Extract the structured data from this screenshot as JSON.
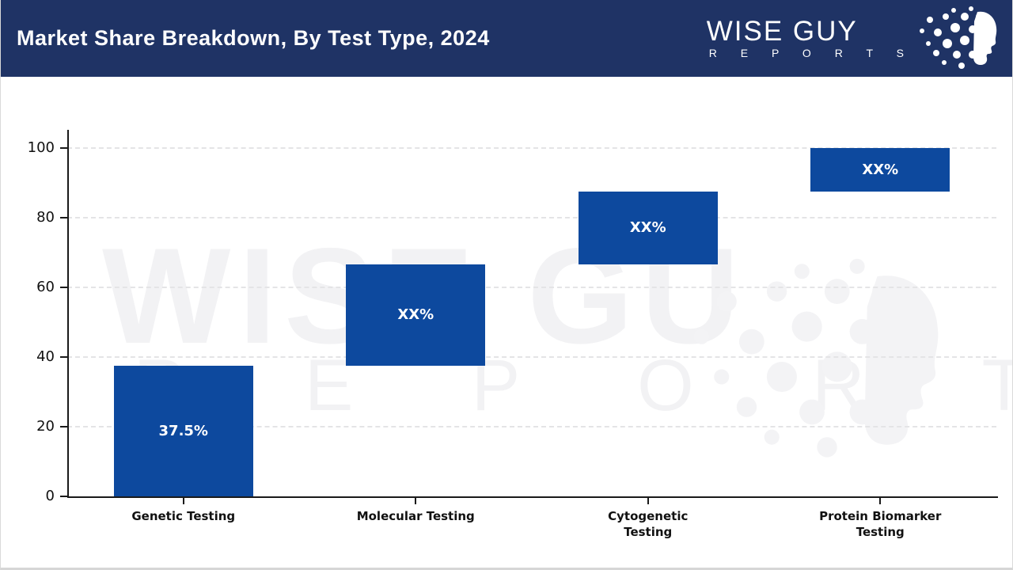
{
  "header": {
    "title": "Market Share Breakdown, By Test Type, 2024",
    "bg_color": "#1f3365",
    "logo": {
      "line1": "WISE GUY",
      "line2": "REPORTS"
    }
  },
  "watermark": {
    "line1": "WISE GU",
    "line2": "R E P O R T S"
  },
  "chart_data": {
    "type": "bar",
    "subtype": "waterfall",
    "title": "Market Share Breakdown, By Test Type, 2024",
    "categories": [
      "Genetic Testing",
      "Molecular Testing",
      "Cytogenetic\nTesting",
      "Protein Biomarker\nTesting"
    ],
    "series": [
      {
        "name": "Market Share (%)",
        "starts": [
          0,
          37.5,
          66.7,
          87.5
        ],
        "ends": [
          37.5,
          66.7,
          87.5,
          100
        ],
        "values": [
          37.5,
          29.2,
          20.8,
          12.5
        ]
      }
    ],
    "bar_labels": [
      "37.5%",
      "XX%",
      "XX%",
      "XX%"
    ],
    "yticks": [
      0,
      20,
      40,
      60,
      80,
      100
    ],
    "ylim": [
      0,
      100
    ],
    "bar_color": "#0d499e",
    "grid": "horizontal-dashed",
    "legend": "none"
  }
}
